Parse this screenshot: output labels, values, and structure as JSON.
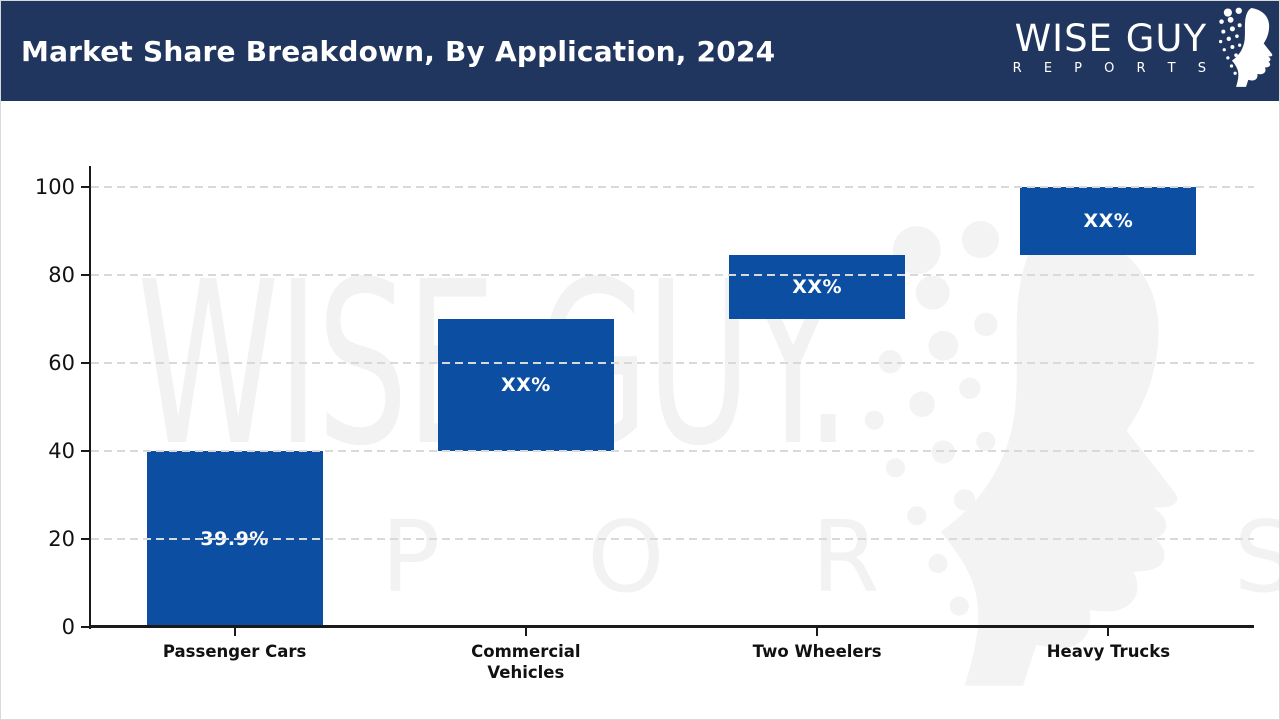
{
  "header": {
    "title": "Market Share Breakdown, By Application, 2024",
    "logo": {
      "line1": "WISE GUY",
      "line2": "R E P O R T S"
    }
  },
  "watermark": {
    "line1": "WISE GUY.",
    "line2": "P O R T S"
  },
  "colors": {
    "header_bg": "#21365F",
    "bar": "#0B4EA2",
    "bar_label": "#FFFFFF",
    "gridline": "#D9D9D9",
    "axis": "#1A1A1A",
    "watermark": "#F2F2F2"
  },
  "chart_data": {
    "type": "bar",
    "variant": "waterfall",
    "title": "Market Share Breakdown, By Application, 2024",
    "categories": [
      "Passenger Cars",
      "Commercial Vehicles",
      "Two Wheelers",
      "Heavy Trucks"
    ],
    "category_label_lines": [
      [
        "Passenger Cars"
      ],
      [
        "Commercial",
        "Vehicles"
      ],
      [
        "Two Wheelers"
      ],
      [
        "Heavy Trucks"
      ]
    ],
    "segments": [
      {
        "category": "Passenger Cars",
        "start": 0,
        "end": 39.9,
        "label": "39.9%"
      },
      {
        "category": "Commercial Vehicles",
        "start": 39.9,
        "end": 70.0,
        "label": "XX%"
      },
      {
        "category": "Two Wheelers",
        "start": 70.0,
        "end": 84.5,
        "label": "XX%"
      },
      {
        "category": "Heavy Trucks",
        "start": 84.5,
        "end": 100.0,
        "label": "XX%"
      }
    ],
    "y_ticks": [
      0,
      20,
      40,
      60,
      80,
      100
    ],
    "ylim": [
      0,
      104.8
    ],
    "xlabel": "",
    "ylabel": "",
    "grid": "horizontal-dashed",
    "legend": "none",
    "bar_color": "#0B4EA2",
    "bar_label_color": "#FFFFFF"
  }
}
